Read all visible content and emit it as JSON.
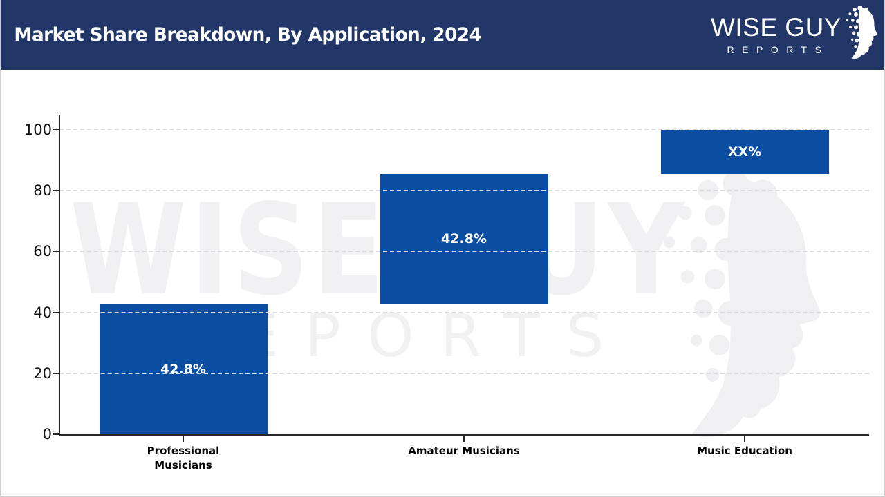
{
  "header": {
    "title": "Market Share Breakdown, By Application, 2024",
    "logo": {
      "line1": "WISE GUY",
      "line2": "REPORTS"
    }
  },
  "watermark": {
    "line1": "WISE GUY",
    "line2": "REPORTS"
  },
  "chart_data": {
    "type": "bar",
    "subtype": "waterfall",
    "title": "Market Share Breakdown, By Application, 2024",
    "categories": [
      "Professional\nMusicians",
      "Amateur Musicians",
      "Music Education"
    ],
    "bars": [
      {
        "category": "Professional Musicians",
        "label": "42.8%",
        "start": 0,
        "end": 42.8
      },
      {
        "category": "Amateur Musicians",
        "label": "42.8%",
        "start": 42.8,
        "end": 85.6
      },
      {
        "category": "Music Education",
        "label": "XX%",
        "start": 85.6,
        "end": 100
      }
    ],
    "ylim": [
      0,
      100
    ],
    "yticks": [
      0,
      20,
      40,
      60,
      80,
      100
    ],
    "grid": "horizontal-dashed",
    "legend": "none",
    "bar_color": "#0b4da1",
    "value_label_color": "#ffffff"
  },
  "colors": {
    "header_bg": "#223767",
    "bar_blue": "#0b4da1",
    "gridline": "#d9d9d9",
    "axis": "#262626",
    "tick_text": "#111111",
    "watermark": "#f1f1f4"
  }
}
